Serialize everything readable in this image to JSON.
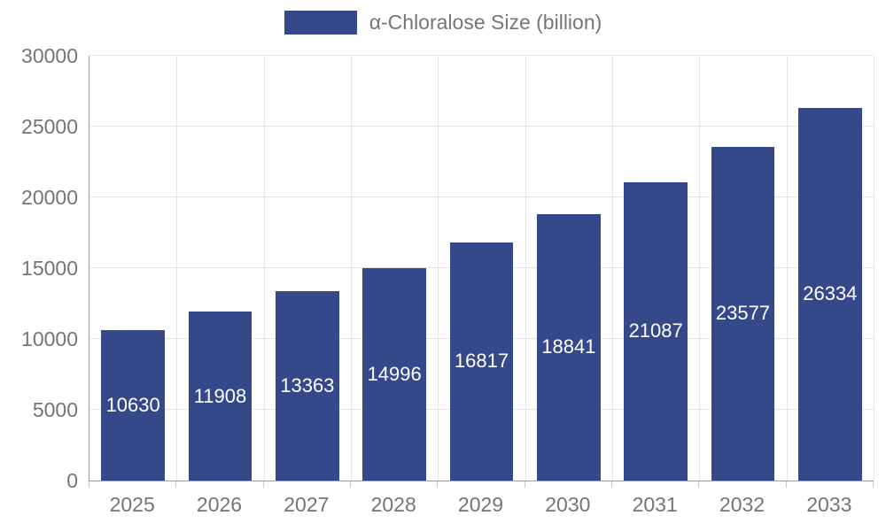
{
  "chart_data": {
    "type": "bar",
    "title": "α-Chloralose Size (billion)",
    "categories": [
      "2025",
      "2026",
      "2027",
      "2028",
      "2029",
      "2030",
      "2031",
      "2032",
      "2033"
    ],
    "values": [
      10630,
      11908,
      13363,
      14996,
      16817,
      18841,
      21087,
      23577,
      26334
    ],
    "xlabel": "",
    "ylabel": "",
    "ylim": [
      0,
      30000
    ],
    "yticks": [
      0,
      5000,
      10000,
      15000,
      20000,
      25000,
      30000
    ],
    "grid": true,
    "legend_position": "top",
    "colors": {
      "bar": "#35488a",
      "data_label": "#ffffff",
      "axis_text": "#757575",
      "axis_line": "#9b9b9b",
      "gridline": "#e3e3e8"
    }
  }
}
